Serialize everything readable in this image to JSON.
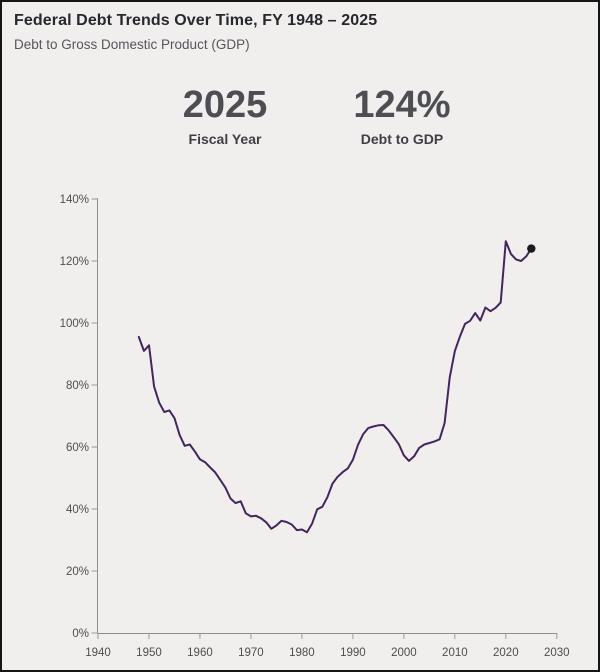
{
  "window": {
    "background_color": "#f0efed",
    "border_color": "#151515"
  },
  "header": {
    "title": "Federal Debt Trends Over Time, FY 1948 – 2025",
    "subtitle": "Debt to Gross Domestic Product (GDP)"
  },
  "stats": [
    {
      "value": "2025",
      "label": "Fiscal Year"
    },
    {
      "value": "124%",
      "label": "Debt to GDP"
    }
  ],
  "chart_data": {
    "type": "line",
    "title": "Debt to Gross Domestic Product (GDP)",
    "xlabel": "",
    "ylabel": "",
    "grid": false,
    "legend": "none",
    "xlim": [
      1940,
      2030
    ],
    "ylim": [
      0,
      140
    ],
    "x_ticks": [
      1940,
      1950,
      1960,
      1970,
      1980,
      1990,
      2000,
      2010,
      2020,
      2030
    ],
    "x_tick_labels": [
      "1940",
      "1950",
      "1960",
      "1970",
      "1980",
      "1990",
      "2000",
      "2010",
      "2020",
      "2030"
    ],
    "y_ticks": [
      0,
      20,
      40,
      60,
      80,
      100,
      120,
      140
    ],
    "y_tick_labels": [
      "0%",
      "20%",
      "40%",
      "60%",
      "80%",
      "100%",
      "120%",
      "140%"
    ],
    "line_color": "#44265e",
    "axis_color": "#8f8f8f",
    "tick_color": "#9a9a9a",
    "end_marker": {
      "x": 2025,
      "value": 124,
      "color": "#1b1b1b"
    },
    "series": [
      {
        "name": "Debt to GDP",
        "x": [
          1948,
          1949,
          1950,
          1951,
          1952,
          1953,
          1954,
          1955,
          1956,
          1957,
          1958,
          1959,
          1960,
          1961,
          1962,
          1963,
          1964,
          1965,
          1966,
          1967,
          1968,
          1969,
          1970,
          1971,
          1972,
          1973,
          1974,
          1975,
          1976,
          1977,
          1978,
          1979,
          1980,
          1981,
          1982,
          1983,
          1984,
          1985,
          1986,
          1987,
          1988,
          1989,
          1990,
          1991,
          1992,
          1993,
          1994,
          1995,
          1996,
          1997,
          1998,
          1999,
          2000,
          2001,
          2002,
          2003,
          2004,
          2005,
          2006,
          2007,
          2008,
          2009,
          2010,
          2011,
          2012,
          2013,
          2014,
          2015,
          2016,
          2017,
          2018,
          2019,
          2020,
          2021,
          2022,
          2023,
          2024,
          2025
        ],
        "values": [
          95.5,
          91.0,
          92.8,
          79.5,
          74.3,
          71.3,
          71.8,
          69.3,
          63.9,
          60.4,
          60.8,
          58.5,
          56.0,
          55.1,
          53.4,
          51.8,
          49.4,
          46.9,
          43.4,
          41.9,
          42.5,
          38.6,
          37.6,
          37.8,
          37.0,
          35.7,
          33.6,
          34.7,
          36.2,
          35.8,
          35.0,
          33.2,
          33.4,
          32.5,
          35.3,
          39.9,
          40.7,
          43.8,
          48.2,
          50.4,
          51.9,
          53.1,
          55.9,
          60.7,
          64.1,
          66.1,
          66.6,
          67.0,
          67.1,
          65.4,
          63.2,
          60.9,
          57.3,
          55.5,
          57.0,
          59.7,
          60.8,
          61.3,
          61.8,
          62.5,
          67.7,
          82.4,
          90.9,
          95.6,
          99.7,
          100.7,
          103.2,
          100.8,
          105.0,
          103.8,
          104.9,
          106.6,
          126.4,
          122.3,
          120.5,
          120.0,
          121.5,
          124.0
        ]
      }
    ]
  }
}
